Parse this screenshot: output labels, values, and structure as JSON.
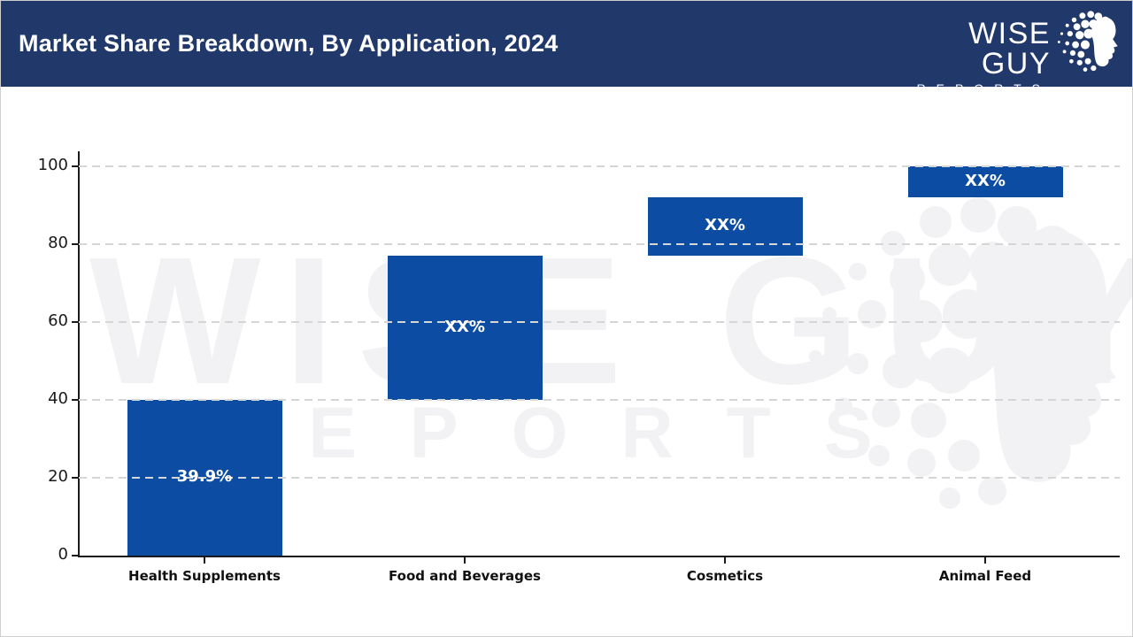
{
  "header": {
    "title": "Market Share Breakdown, By Application, 2024",
    "background": "#21386b"
  },
  "logo": {
    "line1": "WISE GUY",
    "line2": "REPORTS",
    "icon": "dotted-head-profile-icon"
  },
  "watermark": {
    "line1": "WISE GUY",
    "line2": "REPORTS",
    "color": "#f2f2f4"
  },
  "chart_data": {
    "type": "bar",
    "subtype": "waterfall",
    "title": "Market Share Breakdown, By Application, 2024",
    "categories": [
      "Health Supplements",
      "Food and Beverages",
      "Cosmetics",
      "Animal Feed"
    ],
    "segments": [
      {
        "category": "Health Supplements",
        "start": 0,
        "end": 39.9,
        "label": "39.9%"
      },
      {
        "category": "Food and Beverages",
        "start": 39.9,
        "end": 77,
        "label": "XX%"
      },
      {
        "category": "Cosmetics",
        "start": 77,
        "end": 92,
        "label": "XX%"
      },
      {
        "category": "Animal Feed",
        "start": 92,
        "end": 100,
        "label": "XX%"
      }
    ],
    "ylim": [
      0,
      100
    ],
    "yticks": [
      0,
      20,
      40,
      60,
      80,
      100
    ],
    "grid": "horizontal-dashed",
    "legend_position": "none",
    "bar_color": "#0c4da3",
    "bar_label_color": "#ffffff"
  }
}
